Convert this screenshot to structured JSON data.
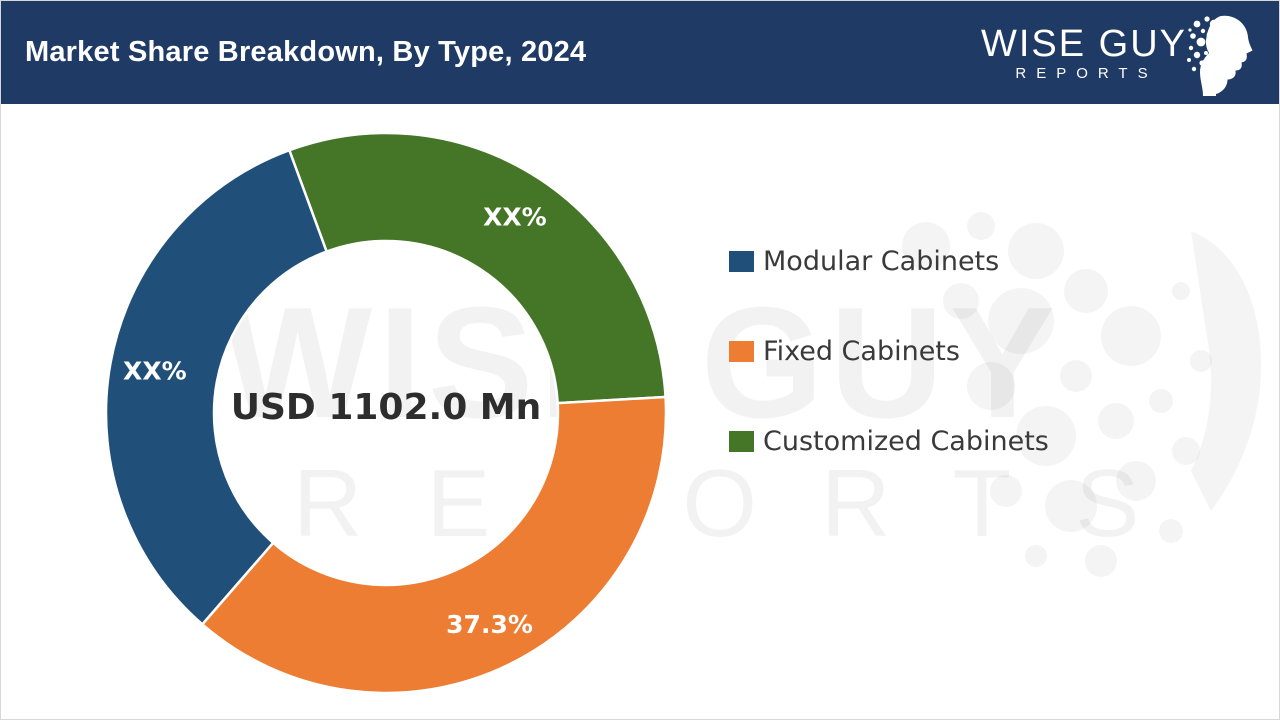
{
  "header": {
    "title": "Market Share Breakdown, By Type, 2024",
    "logo": {
      "name": "WISE GUY",
      "subtitle": "REPORTS"
    }
  },
  "watermark": {
    "line1": "WISE GUY",
    "line2": "REPORTS"
  },
  "chart_data": {
    "type": "pie",
    "subtype": "donut",
    "title": "Market Share Breakdown, By Type, 2024",
    "center_label": "USD 1102.0 Mn",
    "start_angle_deg": -20.2,
    "direction": "clockwise",
    "inner_radius_ratio": 0.615,
    "slices": [
      {
        "name": "Customized Cabinets",
        "value_pct": 29.7,
        "data_label": "XX%",
        "color": "#457527"
      },
      {
        "name": "Fixed Cabinets",
        "value_pct": 37.3,
        "data_label": "37.3%",
        "color": "#EC7D33"
      },
      {
        "name": "Modular Cabinets",
        "value_pct": 33.0,
        "data_label": "XX%",
        "color": "#20507A"
      }
    ],
    "legend_position": "right"
  },
  "legend": {
    "items": [
      {
        "label": "Modular Cabinets",
        "color": "#20507A"
      },
      {
        "label": "Fixed Cabinets",
        "color": "#EC7D33"
      },
      {
        "label": "Customized Cabinets",
        "color": "#457527"
      }
    ]
  }
}
